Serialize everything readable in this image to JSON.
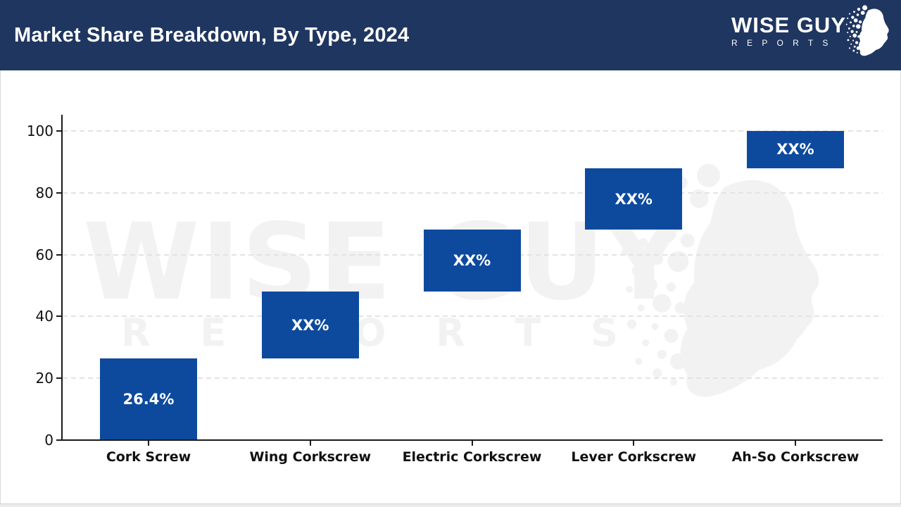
{
  "header": {
    "title": "Market Share Breakdown, By Type, 2024",
    "brand": {
      "name": "WISE GUY",
      "tagline": "R E P O R T S"
    }
  },
  "watermark": {
    "name": "WISE GUY",
    "tagline": "R E P O R T S"
  },
  "colors": {
    "header_bg": "#1f3660",
    "bar": "#0d4a9e",
    "grid": "#e3e3e3",
    "axis": "#1a1a1a",
    "bar_label": "#ffffff",
    "watermark": "#f2f2f2"
  },
  "chart_data": {
    "type": "bar",
    "subtype": "waterfall",
    "title": "Market Share Breakdown, By Type, 2024",
    "xlabel": "",
    "ylabel": "",
    "ylim": [
      0,
      105
    ],
    "yticks": [
      0,
      20,
      40,
      60,
      80,
      100
    ],
    "grid": "horizontal-dashed",
    "legend": "none",
    "categories": [
      "Cork Screw",
      "Wing Corkscrew",
      "Electric Corkscrew",
      "Lever Corkscrew",
      "Ah-So Corkscrew"
    ],
    "series": [
      {
        "name": "Market share (%)",
        "segments": [
          {
            "category": "Cork Screw",
            "start": 0,
            "end": 26.4,
            "label": "26.4%"
          },
          {
            "category": "Wing Corkscrew",
            "start": 26.4,
            "end": 48,
            "label": "XX%"
          },
          {
            "category": "Electric Corkscrew",
            "start": 48,
            "end": 68,
            "label": "XX%"
          },
          {
            "category": "Lever Corkscrew",
            "start": 68,
            "end": 88,
            "label": "XX%"
          },
          {
            "category": "Ah-So Corkscrew",
            "start": 88,
            "end": 100,
            "label": "XX%"
          }
        ]
      }
    ]
  }
}
